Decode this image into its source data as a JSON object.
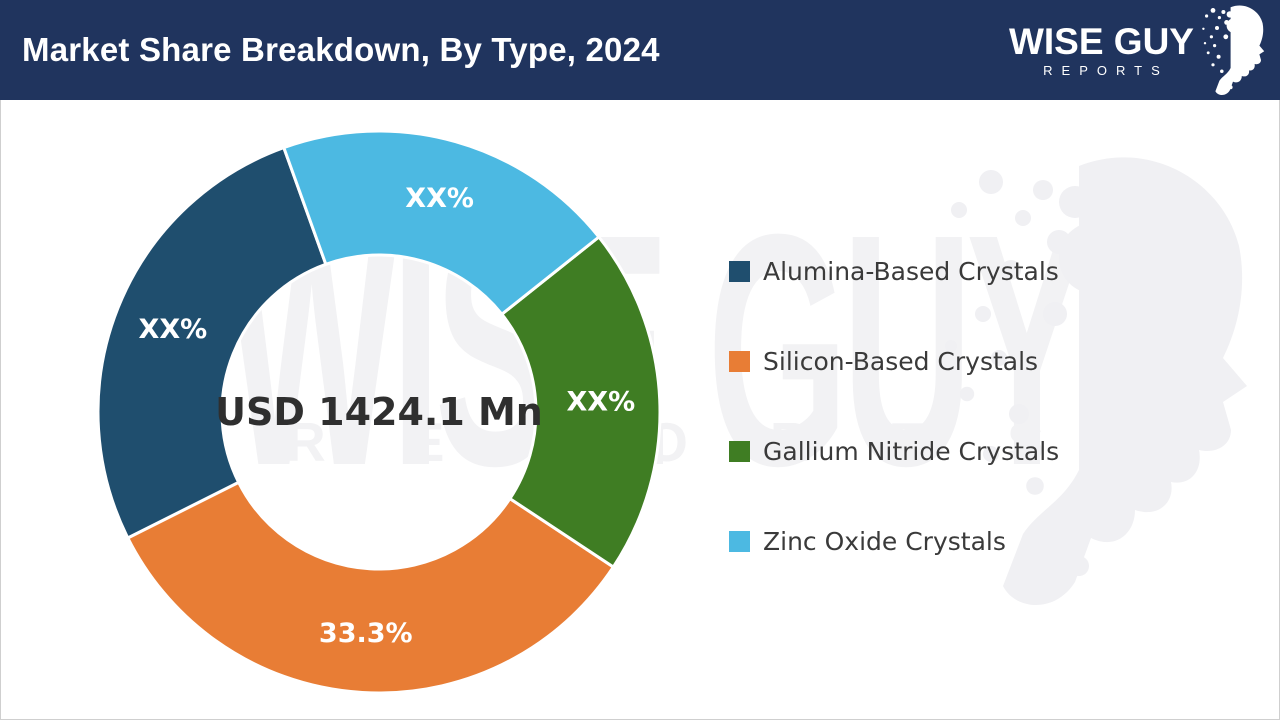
{
  "header": {
    "title": "Market Share Breakdown, By Type, 2024",
    "logo": {
      "name": "WISE GUY",
      "sub": "REPORTS"
    }
  },
  "watermark": {
    "line1": "WISE GUY",
    "line2": "REPORTS"
  },
  "chart_data": {
    "type": "pie",
    "subtype": "donut",
    "title": "Market Share Breakdown, By Type, 2024",
    "center_label": "USD 1424.1 Mn",
    "unit": "percent share",
    "legend_position": "right",
    "start_angle_deg": 340.2,
    "direction": "counterclockwise",
    "segments": [
      {
        "label": "Alumina-Based Crystals",
        "display_label": "XX%",
        "value": 26.9,
        "color": "#1F4E6E"
      },
      {
        "label": "Silicon-Based Crystals",
        "display_label": "33.3%",
        "value": 33.3,
        "color": "#E87D35"
      },
      {
        "label": "Gallium Nitride Crystals",
        "display_label": "XX%",
        "value": 20.0,
        "color": "#3F7D23"
      },
      {
        "label": "Zinc Oxide Crystals",
        "display_label": "XX%",
        "value": 19.8,
        "color": "#4CB9E2"
      }
    ],
    "colors": {
      "header_bg": "#20345E",
      "center_text": "#2f2f2f",
      "label_text": "#ffffff"
    }
  }
}
